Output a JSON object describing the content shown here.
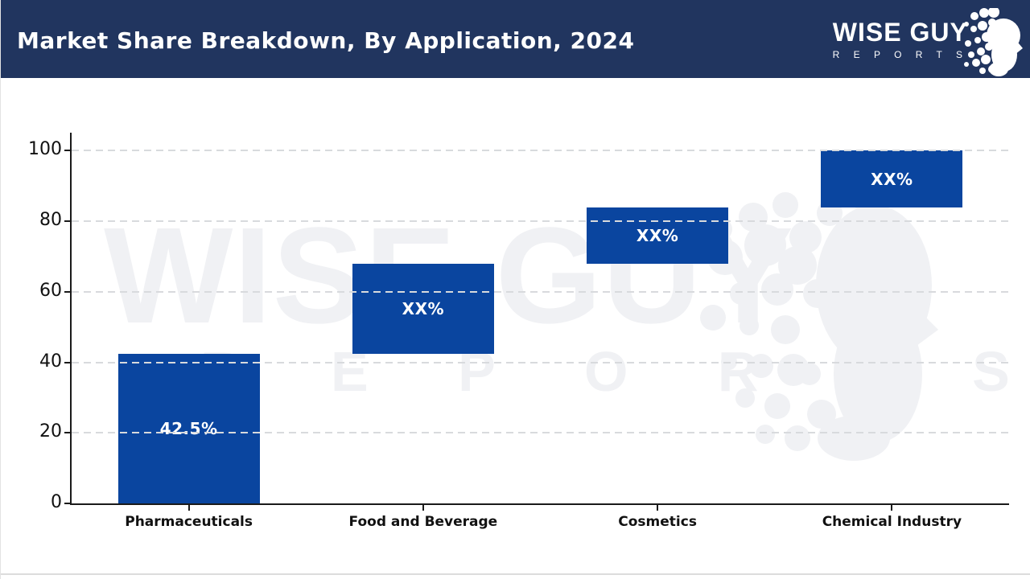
{
  "header": {
    "title": "Market Share Breakdown, By Application, 2024",
    "logo": {
      "line1": "WISE GUY",
      "line2": "R E P O R T S"
    }
  },
  "watermark": {
    "line1": "WISE GUY",
    "line2": "R E P O R T S"
  },
  "chart_data": {
    "type": "bar",
    "subtype": "waterfall",
    "title": "Market Share Breakdown, By Application, 2024",
    "categories": [
      "Pharmaceuticals",
      "Food and Beverage",
      "Cosmetics",
      "Chemical Industry"
    ],
    "values": [
      42.5,
      25.5,
      16,
      16
    ],
    "segments": [
      {
        "category": "Pharmaceuticals",
        "start": 0,
        "end": 42.5,
        "label": "42.5%"
      },
      {
        "category": "Food and Beverage",
        "start": 42.5,
        "end": 68,
        "label": "XX%"
      },
      {
        "category": "Cosmetics",
        "start": 68,
        "end": 84,
        "label": "XX%"
      },
      {
        "category": "Chemical Industry",
        "start": 84,
        "end": 100,
        "label": "XX%"
      }
    ],
    "xlabel": "",
    "ylabel": "",
    "y_ticks": [
      0,
      20,
      40,
      60,
      80,
      100
    ],
    "ylim": [
      0,
      105
    ],
    "grid": true,
    "grid_style": "dashed",
    "legend": "none",
    "bar_value_color": "#ffffff"
  },
  "colors": {
    "header_bg": "#21355f",
    "bar_color": "#0a459f",
    "grid_color": "#d8dadd",
    "axis_color": "#1a1a1a",
    "text_color": "#111111",
    "watermark_color": "#f0f1f4",
    "border_color": "#dcdcdc"
  }
}
